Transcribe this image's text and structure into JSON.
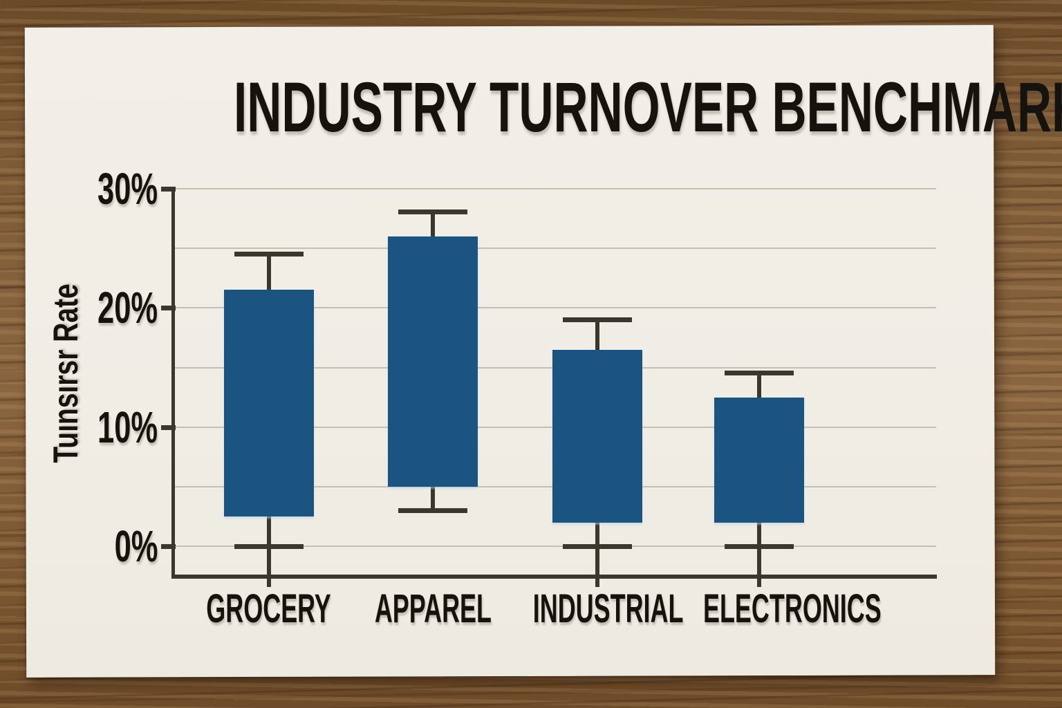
{
  "chart_data": {
    "type": "boxplot",
    "title": "INDUSTRY TURNOVER BENCHMARKS",
    "ylabel": "Tuınsırsr Rate",
    "xlabel": "",
    "ylim": [
      0,
      30
    ],
    "grid": true,
    "grid_step_pct": 5,
    "y_tick_values": [
      0,
      10,
      20,
      30
    ],
    "y_ticks": [
      "0%",
      "10%",
      "20%",
      "30%"
    ],
    "categories": [
      "GROCERY",
      "APPAREL",
      "INDUSTRIAL",
      "ELECTRONICS"
    ],
    "series": [
      {
        "label": "GROCERY",
        "whisker_high": 24.5,
        "box_high": 21.5,
        "box_low": 2.5,
        "whisker_low": 0,
        "stem_to_axis": true
      },
      {
        "label": "APPAREL",
        "whisker_high": 28,
        "box_high": 26,
        "box_low": 5,
        "whisker_low": 3,
        "stem_to_axis": false
      },
      {
        "label": "INDUSTRIAL",
        "whisker_high": 19,
        "box_high": 16.5,
        "box_low": 2,
        "whisker_low": 0,
        "stem_to_axis": true
      },
      {
        "label": "ELECTRONICS",
        "whisker_high": 14.5,
        "box_high": 12.5,
        "box_low": 2,
        "whisker_low": 0,
        "stem_to_axis": true
      }
    ],
    "colors": {
      "box_fill": "#1b5480",
      "axis_line": "#3b372d",
      "gridline": "#c5bfb2",
      "text": "#16130e",
      "card_background": "#f0ede5",
      "table_wood": "#7d5a36"
    }
  }
}
